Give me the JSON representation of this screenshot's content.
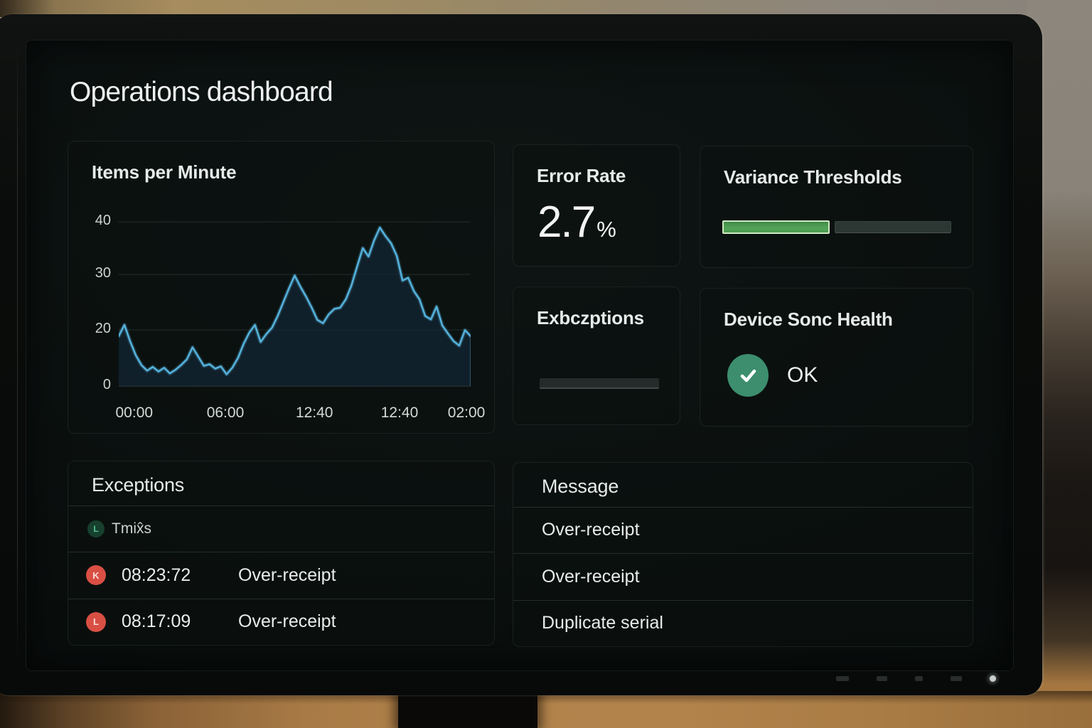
{
  "page_title": "Operations dashboard",
  "panels": {
    "items_per_minute": {
      "title": "Items per Minute"
    },
    "error_rate": {
      "title": "Error Rate",
      "value": "2.7",
      "unit": "%"
    },
    "variance_thresholds": {
      "title": "Variance Thresholds",
      "progress_percent": 47
    },
    "exceptions_mini": {
      "title": "Exbczptions"
    },
    "device_health": {
      "title": "Device Sonc Health",
      "status": "OK"
    }
  },
  "chart_data": {
    "type": "area",
    "title": "Items per Minute",
    "xlabel": "",
    "ylabel": "",
    "x_tick_labels": [
      "00:00",
      "06:00",
      "12:40",
      "12:40",
      "02:00"
    ],
    "y_tick_labels": [
      "40",
      "30",
      "20",
      "0"
    ],
    "ylim": [
      0,
      42
    ],
    "grid": true,
    "legend_position": "none",
    "series": [
      {
        "name": "Items per minute",
        "values": [
          17.8,
          20.9,
          16,
          11,
          7.5,
          5.5,
          6.8,
          5.2,
          6.5,
          4.5,
          5.8,
          7.5,
          9.5,
          13.8,
          10.5,
          7.2,
          7.8,
          6.2,
          7,
          4.2,
          6.5,
          10,
          15,
          19,
          20.9,
          15.7,
          18.5,
          20.4,
          22.5,
          25,
          27.5,
          29.8,
          27.8,
          26,
          24,
          21.8,
          21.2,
          22.8,
          23.8,
          24,
          25.5,
          28,
          31.5,
          35,
          33.4,
          36.5,
          38.9,
          37.3,
          35.9,
          33.5,
          28.9,
          29.4,
          27,
          25.5,
          22.5,
          21.9,
          24.2,
          20.8,
          18.7,
          16,
          14.4,
          19.9,
          17.8
        ]
      }
    ]
  },
  "exceptions_table": {
    "title": "Exceptions",
    "rows": [
      {
        "badge": "L",
        "badge_color": "green",
        "time": "",
        "message": "Tmix̂s"
      },
      {
        "badge": "K",
        "badge_color": "red",
        "time": "08:23:72",
        "message": "Over-receipt"
      },
      {
        "badge": "L",
        "badge_color": "red",
        "time": "08:17:09",
        "message": "Over-receipt"
      }
    ]
  },
  "message_table": {
    "title": "Message",
    "rows": [
      "Over-receipt",
      "Over-receipt",
      "Duplicate serial"
    ]
  },
  "monitor_controls": {
    "button_count": 5
  },
  "colors": {
    "chart_line": "#54b1dc",
    "chart_fill": "#132636",
    "progress_green": "#4c9b51",
    "health_green": "#3c8e6e",
    "alert_red": "#d94f44",
    "badge_green_bg": "#17402f",
    "badge_green_text": "#55c28f",
    "screen_bg": "#0b100f",
    "text_primary": "#e9edec"
  }
}
